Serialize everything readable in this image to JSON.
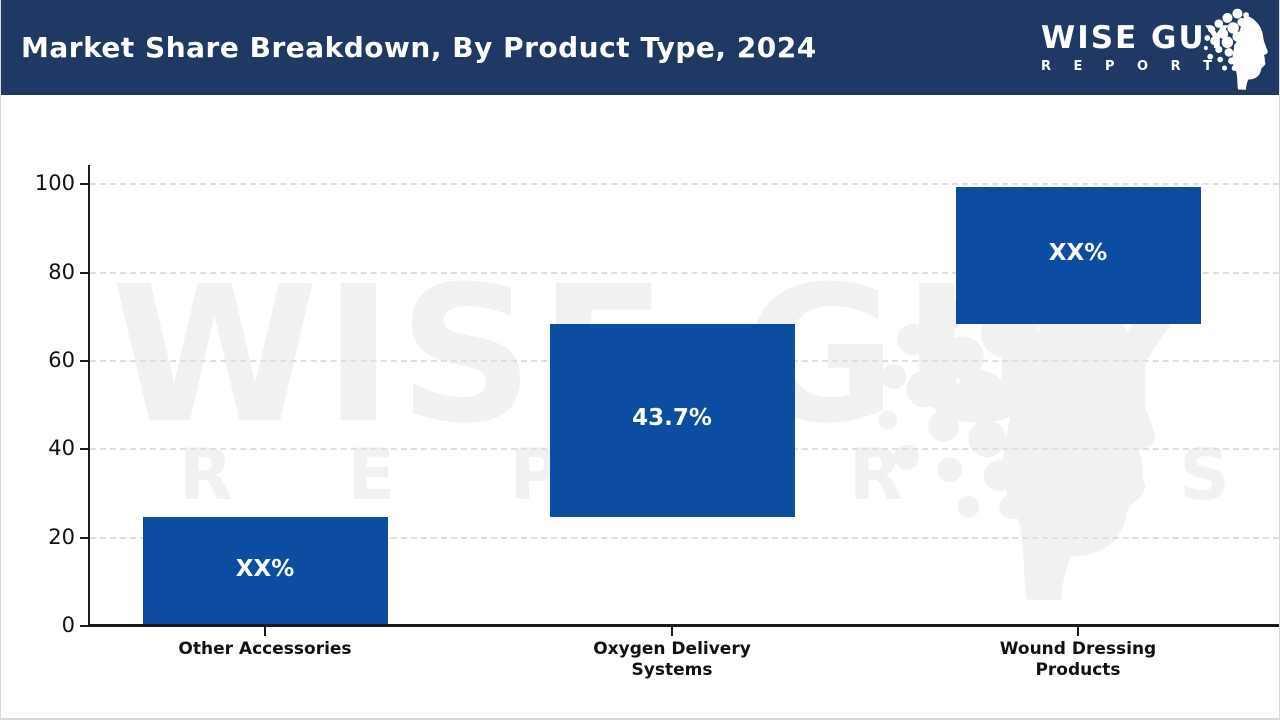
{
  "header": {
    "title": "Market Share Breakdown, By Product Type, 2024",
    "background_color": "#203864",
    "logo": {
      "line1": "WISE GUY",
      "line2": "R E P O R T S"
    }
  },
  "watermark": {
    "line1": "WISE GUY",
    "line2": "R E P O R T S"
  },
  "chart_data": {
    "type": "bar",
    "subtype": "floating-waterfall",
    "title": "Market Share Breakdown, By Product Type, 2024",
    "categories": [
      "Other Accessories",
      "Oxygen Delivery\nSystems",
      "Wound Dressing\nProducts"
    ],
    "values": [
      24.7,
      43.7,
      31.0
    ],
    "bar_bases": [
      0,
      24.7,
      68.4
    ],
    "bar_labels": [
      "XX%",
      "43.7%",
      "XX%"
    ],
    "yticks": [
      0,
      20,
      40,
      60,
      80,
      100
    ],
    "ylim": [
      0,
      104
    ],
    "xlabel": "",
    "ylabel": "",
    "grid": "horizontal-dashed",
    "legend": "none",
    "bar_color": "#0c4da1",
    "label_color": "#ffffff"
  }
}
